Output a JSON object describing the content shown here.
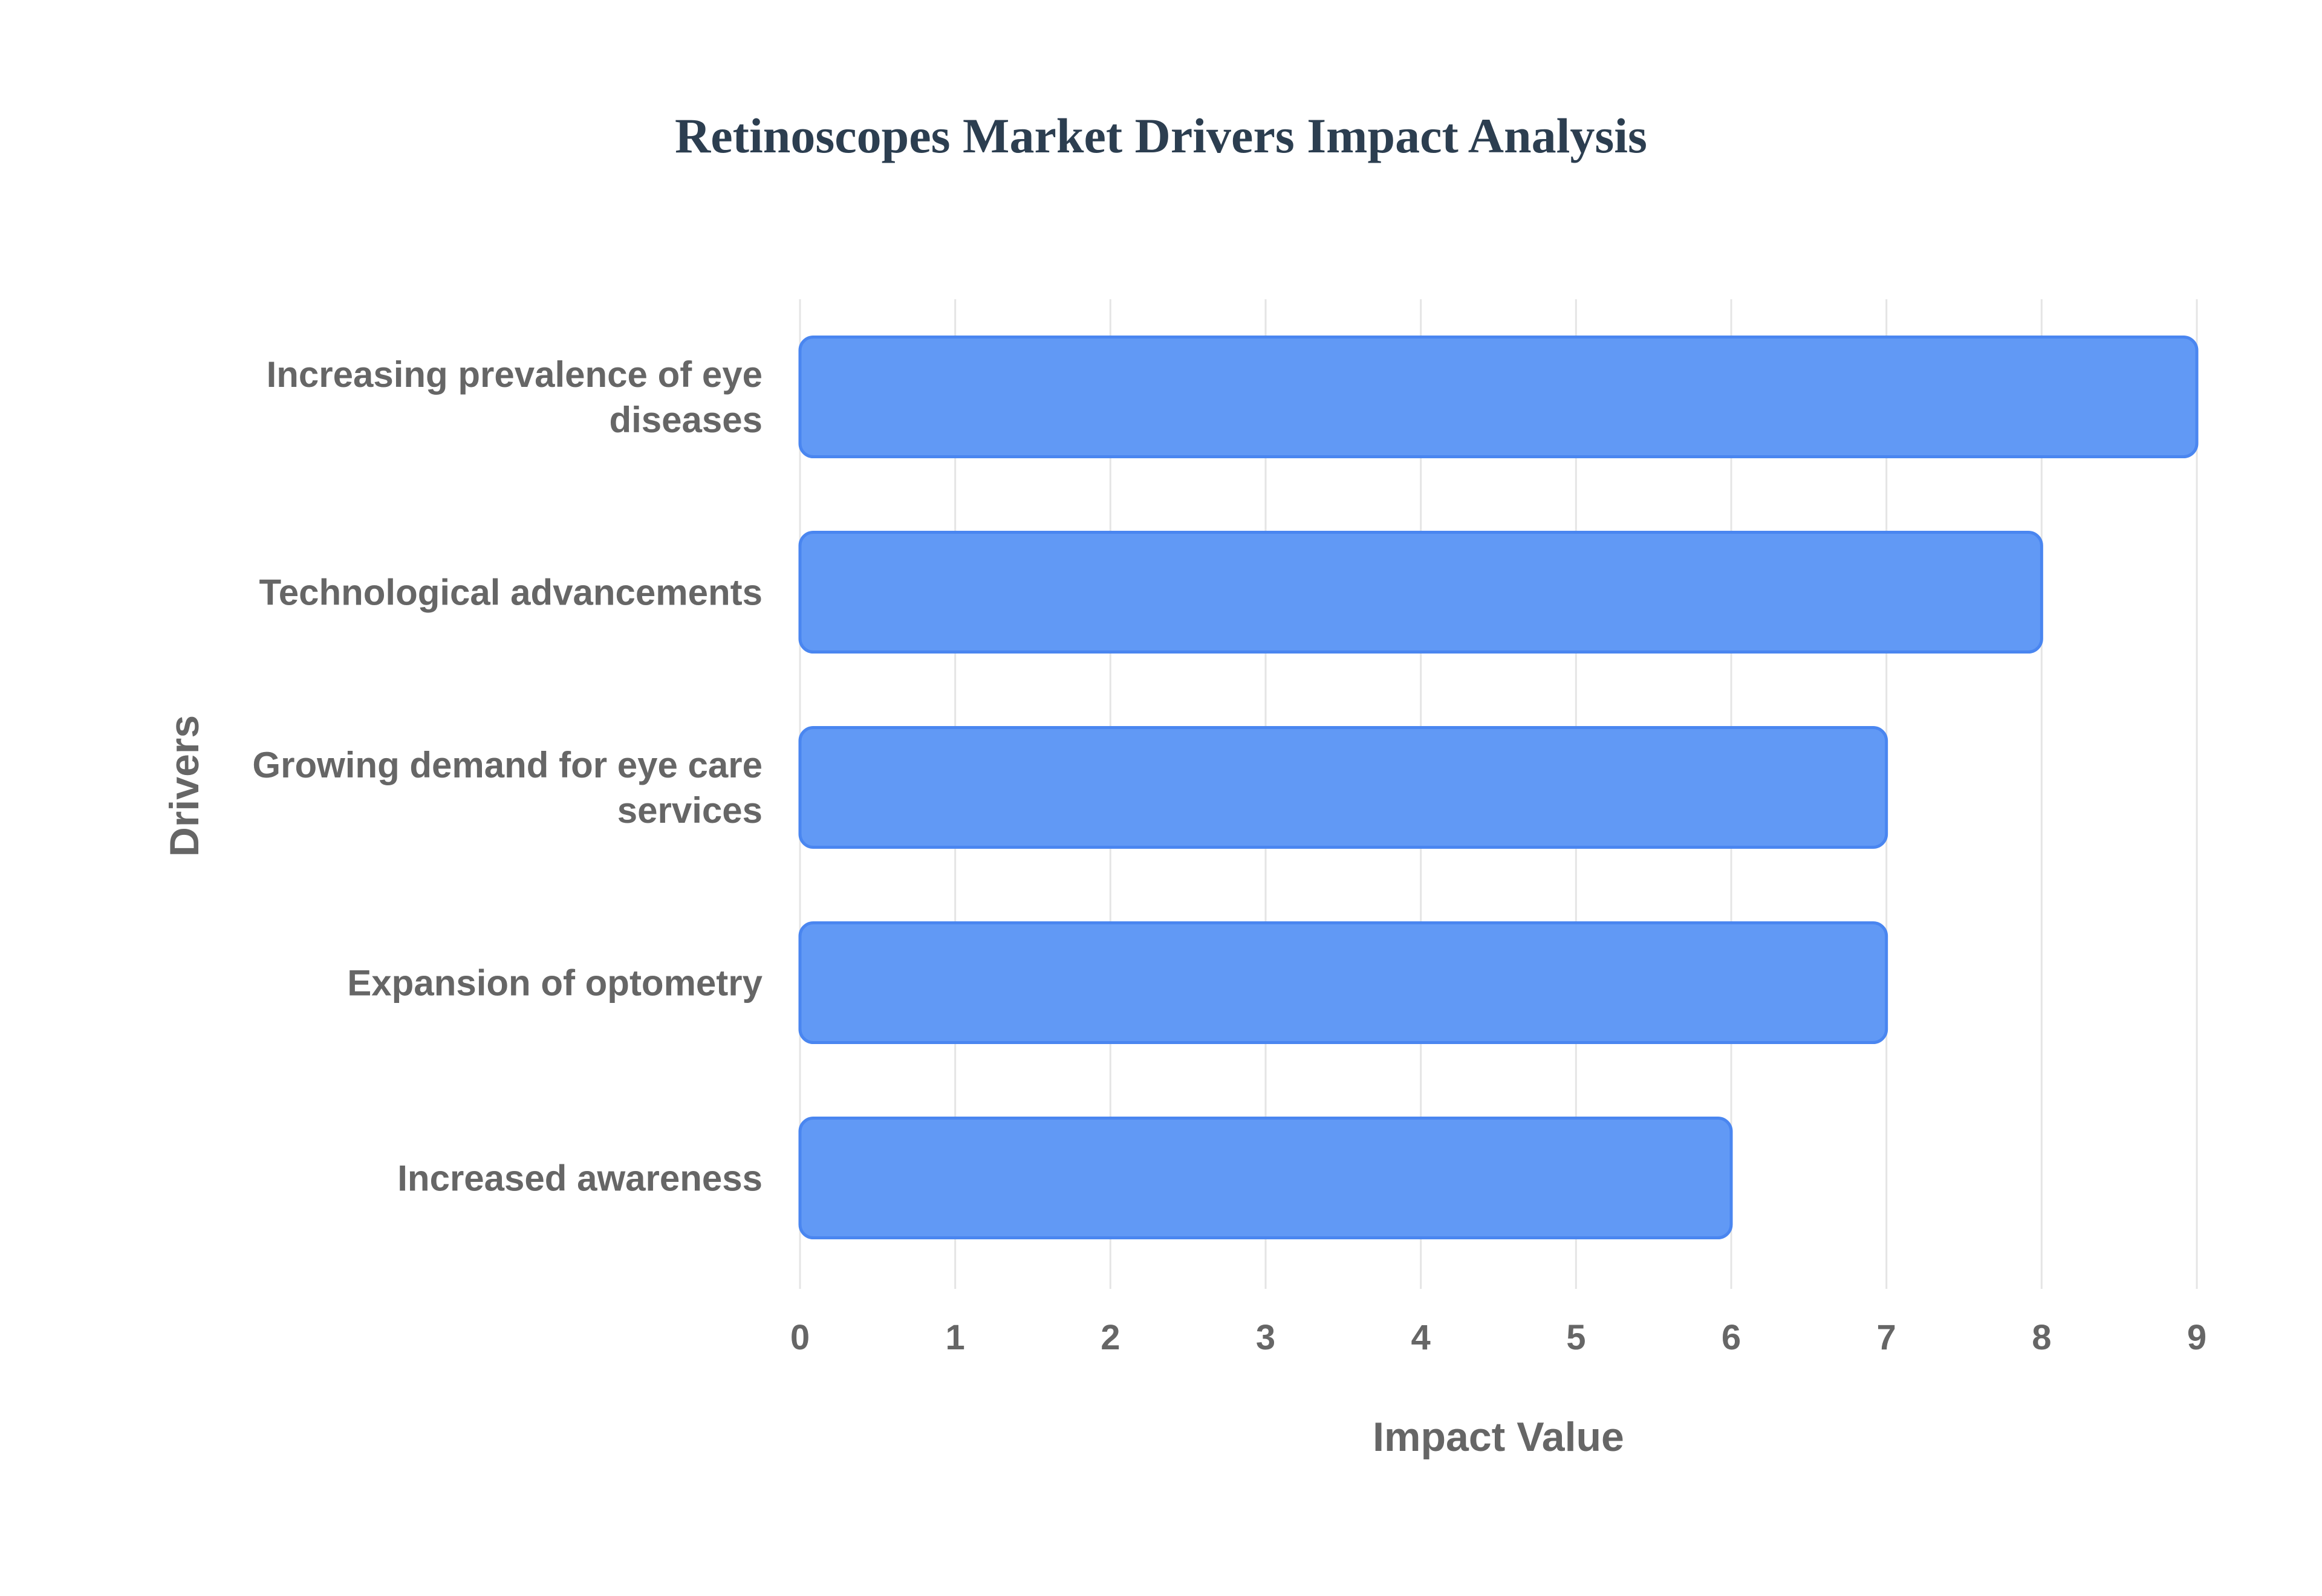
{
  "chart_data": {
    "type": "bar",
    "orientation": "horizontal",
    "title": "Retinoscopes Market Drivers Impact Analysis",
    "xlabel": "Impact Value",
    "ylabel": "Drivers",
    "categories": [
      [
        "Increasing prevalence of eye",
        "diseases"
      ],
      [
        "Technological advancements"
      ],
      [
        "Growing demand for eye care",
        "services"
      ],
      [
        "Expansion of optometry"
      ],
      [
        "Increased awareness"
      ]
    ],
    "values": [
      9,
      8,
      7,
      7,
      6
    ],
    "xlim": [
      0,
      9
    ],
    "x_ticks": [
      "0",
      "1",
      "2",
      "3",
      "4",
      "5",
      "6",
      "7",
      "8",
      "9"
    ],
    "grid": true,
    "bar_color": "#6199f5",
    "bar_border_color": "#4a86f0",
    "grid_color": "#e5e5e5"
  }
}
